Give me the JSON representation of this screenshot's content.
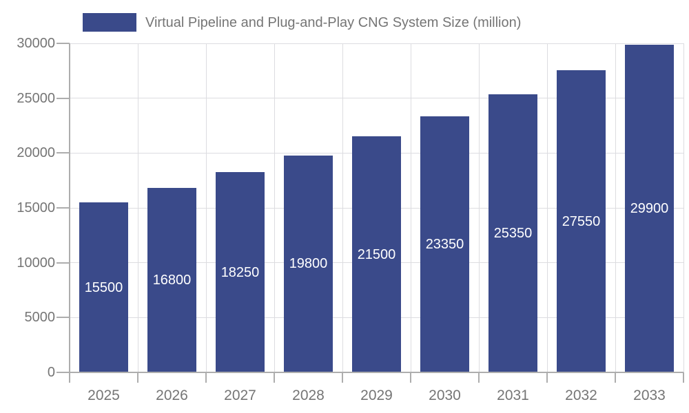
{
  "chart_data": {
    "type": "bar",
    "title": "Virtual Pipeline and Plug-and-Play CNG System Size (million)",
    "categories": [
      "2025",
      "2026",
      "2027",
      "2028",
      "2029",
      "2030",
      "2031",
      "2032",
      "2033"
    ],
    "values": [
      15500,
      16800,
      18250,
      19800,
      21500,
      23350,
      25350,
      27550,
      29900
    ],
    "value_labels": [
      "15500",
      "16800",
      "18250",
      "19800",
      "21500",
      "23350",
      "25350",
      "27550",
      "29900"
    ],
    "xlabel": "",
    "ylabel": "",
    "ylim": [
      0,
      30000
    ],
    "yticks": [
      0,
      5000,
      10000,
      15000,
      20000,
      25000,
      30000
    ],
    "ytick_labels": [
      "0",
      "5000",
      "10000",
      "15000",
      "20000",
      "25000",
      "30000"
    ],
    "grid": "on",
    "legend_position": "top-left",
    "colors": {
      "bar_fill": "#3A4A8A",
      "value_label": "#FFFFFF",
      "grid_line": "#DCDCE0",
      "axis_line": "#ADADAD",
      "tick_label": "#757575",
      "legend_text": "#757575",
      "background": "#FFFFFF"
    }
  }
}
